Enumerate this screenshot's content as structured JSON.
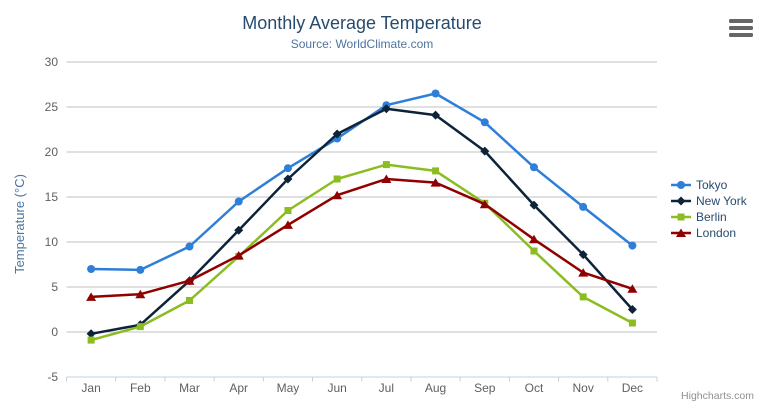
{
  "chart_data": {
    "type": "line",
    "title": "Monthly Average Temperature",
    "subtitle": "Source: WorldClimate.com",
    "categories": [
      "Jan",
      "Feb",
      "Mar",
      "Apr",
      "May",
      "Jun",
      "Jul",
      "Aug",
      "Sep",
      "Oct",
      "Nov",
      "Dec"
    ],
    "xlabel": "",
    "ylabel": "Temperature (°C)",
    "ylim": [
      -5,
      30
    ],
    "yticks": [
      -5,
      0,
      5,
      10,
      15,
      20,
      25,
      30
    ],
    "grid": true,
    "legend_position": "right",
    "series": [
      {
        "name": "Tokyo",
        "color": "#2f7ed8",
        "marker": "circle",
        "values": [
          7.0,
          6.9,
          9.5,
          14.5,
          18.2,
          21.5,
          25.2,
          26.5,
          23.3,
          18.3,
          13.9,
          9.6
        ]
      },
      {
        "name": "New York",
        "color": "#0d233a",
        "marker": "diamond",
        "values": [
          -0.2,
          0.8,
          5.7,
          11.3,
          17.0,
          22.0,
          24.8,
          24.1,
          20.1,
          14.1,
          8.6,
          2.5
        ]
      },
      {
        "name": "Berlin",
        "color": "#8bbc21",
        "marker": "square",
        "values": [
          -0.9,
          0.6,
          3.5,
          8.4,
          13.5,
          17.0,
          18.6,
          17.9,
          14.3,
          9.0,
          3.9,
          1.0
        ]
      },
      {
        "name": "London",
        "color": "#910000",
        "marker": "triangle",
        "values": [
          3.9,
          4.2,
          5.7,
          8.5,
          11.9,
          15.2,
          17.0,
          16.6,
          14.2,
          10.3,
          6.6,
          4.8
        ]
      }
    ]
  },
  "credits": {
    "label": "Highcharts.com"
  },
  "colors": {
    "title": "#274b6d",
    "subtitle": "#4d759e",
    "axis_title": "#4d759e",
    "tick_label": "#606060",
    "grid_line": "#c0c0c0",
    "axis_line": "#c0d0e0",
    "legend_text": "#274b6d",
    "credit": "#909090",
    "menu_icon": "#666666"
  }
}
